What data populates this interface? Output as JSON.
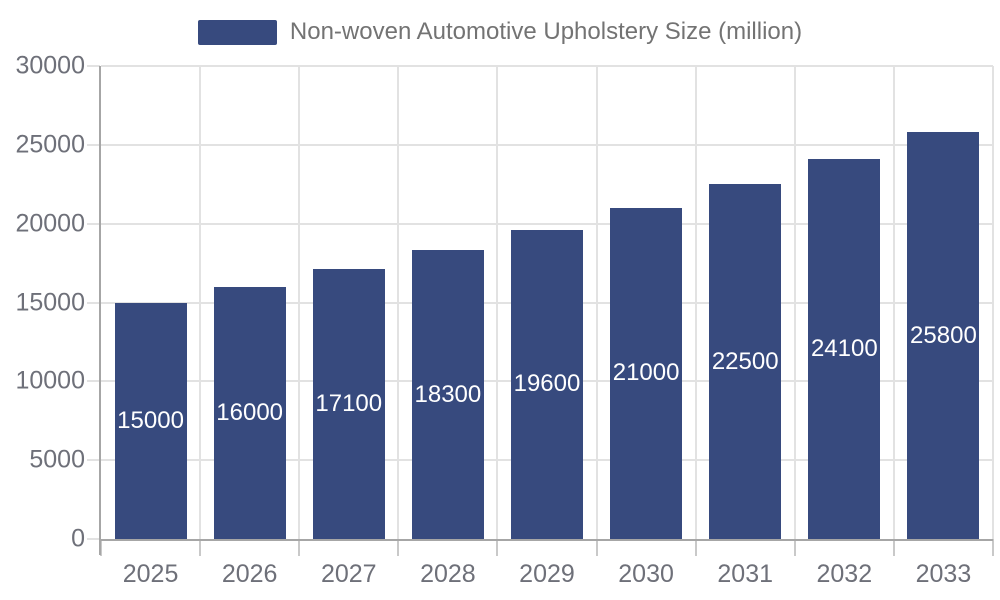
{
  "legend": {
    "label": "Non-woven Automotive Upholstery Size (million)",
    "swatch_color": "#374A7E"
  },
  "chart_data": {
    "type": "bar",
    "title": "Non-woven Automotive Upholstery Size (million)",
    "categories": [
      "2025",
      "2026",
      "2027",
      "2028",
      "2029",
      "2030",
      "2031",
      "2032",
      "2033"
    ],
    "values": [
      15000,
      16000,
      17100,
      18300,
      19600,
      21000,
      22500,
      24100,
      25800
    ],
    "value_labels": [
      "15000",
      "16000",
      "17100",
      "18300",
      "19600",
      "21000",
      "22500",
      "24100",
      "25800"
    ],
    "xlabel": "",
    "ylabel": "",
    "ylim": [
      0,
      30000
    ],
    "ytick_step": 5000,
    "ytick_labels": [
      "0",
      "5000",
      "10000",
      "15000",
      "20000",
      "25000",
      "30000"
    ],
    "grid": true,
    "legend_position": "top-center",
    "bar_color": "#374A7E",
    "value_label_color": "#ffffff",
    "axis_label_color": "#6E7079",
    "gridline_color": "#E2E2E2",
    "axis_line_color": "#A6A6A6",
    "background_color": "#ffffff"
  }
}
